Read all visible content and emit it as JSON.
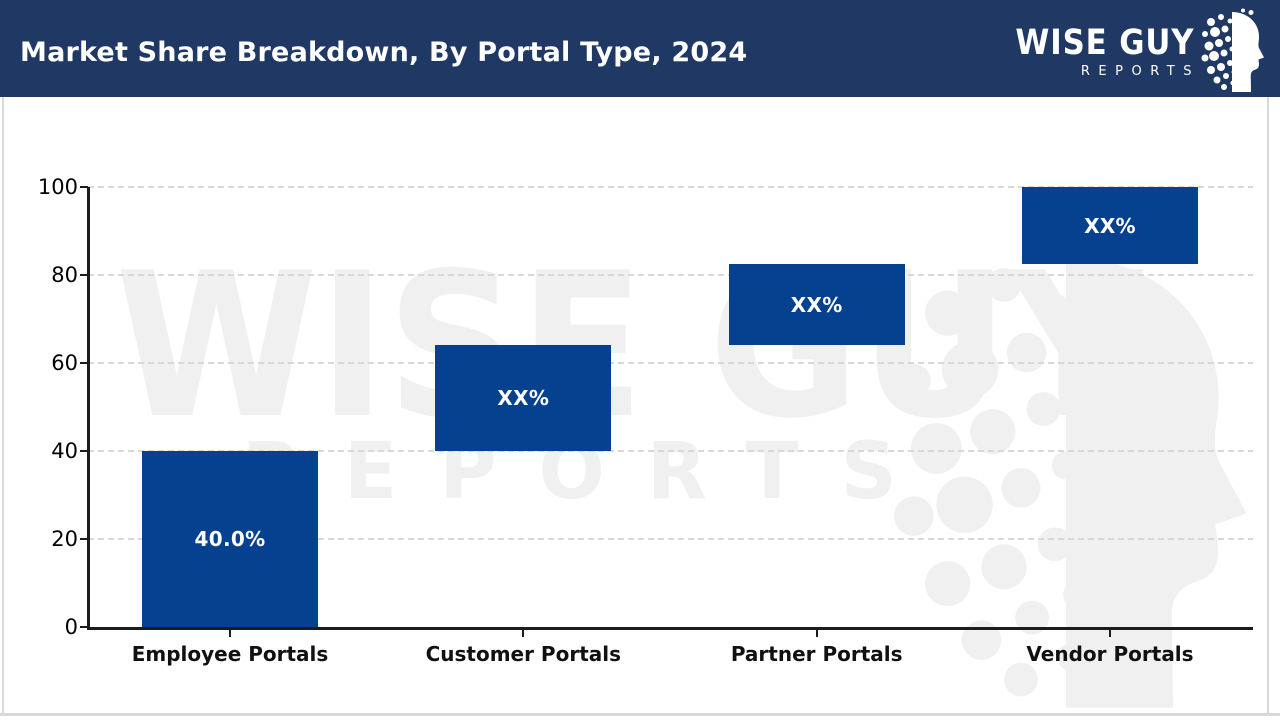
{
  "header": {
    "title": "Market Share Breakdown, By Portal Type, 2024",
    "background_color": "#1f3864",
    "logo": {
      "line1": "WISE GUY",
      "line2": "REPORTS"
    }
  },
  "watermark": {
    "line1": "WISE GUY",
    "line2": "REPORTS"
  },
  "chart_data": {
    "type": "bar",
    "variant": "waterfall",
    "title": "Market Share Breakdown, By Portal Type, 2024",
    "categories": [
      "Employee Portals",
      "Customer Portals",
      "Partner Portals",
      "Vendor Portals"
    ],
    "segments": [
      {
        "category": "Employee Portals",
        "start": 0,
        "end": 40,
        "label": "40.0%"
      },
      {
        "category": "Customer Portals",
        "start": 40,
        "end": 64,
        "label": "XX%"
      },
      {
        "category": "Partner Portals",
        "start": 64,
        "end": 82.5,
        "label": "XX%"
      },
      {
        "category": "Vendor Portals",
        "start": 82.5,
        "end": 100,
        "label": "XX%"
      }
    ],
    "ylim": [
      0,
      100
    ],
    "yticks": [
      0,
      20,
      40,
      60,
      80,
      100
    ],
    "xlabel": "",
    "ylabel": "",
    "legend": "none",
    "grid": "horizontal-dashed",
    "bar_color": "#05418f",
    "bar_label_color": "#ffffff",
    "axis_color": "#1c1c1c",
    "grid_color": "#d8d8d8"
  }
}
